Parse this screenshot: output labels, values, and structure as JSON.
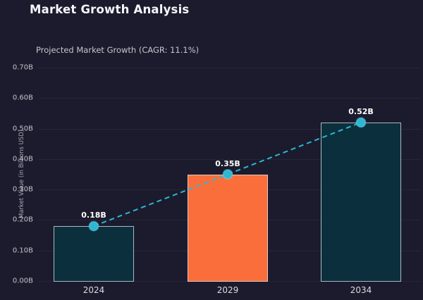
{
  "title": "Market Growth Analysis",
  "subtitle": "Projected Market Growth (CAGR: 11.1%)",
  "colors": {
    "background": "#1b1b2d",
    "bar_teal": "#0b2f3d",
    "bar_orange": "#fa6e3c",
    "bar_border": "rgba(222,232,236,0.75)",
    "trend_line": "#2db7d1",
    "marker_fill": "#2db7d1",
    "title_text": "#f5f5fa",
    "subtitle_text": "#c6c6d0",
    "tick_text": "#c2c2cc",
    "axis_title_text": "#a8a8b6",
    "grid": "rgba(255,255,255,0.05)"
  },
  "chart_data": {
    "type": "bar",
    "overlay": "line",
    "title": "Market Growth Analysis",
    "subtitle": "Projected Market Growth (CAGR: 11.1%)",
    "categories": [
      "2024",
      "2029",
      "2034"
    ],
    "values": [
      0.18,
      0.35,
      0.52
    ],
    "bar_labels": [
      "0.18B",
      "0.35B",
      "0.52B"
    ],
    "bar_colors": [
      "#0b2f3d",
      "#fa6e3c",
      "#0b2f3d"
    ],
    "xlabel": "",
    "ylabel": "Market Value (in Billions USD)",
    "ylim": [
      0,
      0.7
    ],
    "ytick_values": [
      0,
      0.1,
      0.2,
      0.3,
      0.4,
      0.5,
      0.6,
      0.7
    ],
    "ytick_labels": [
      "0.00B",
      "0.10B",
      "0.20B",
      "0.30B",
      "0.40B",
      "0.50B",
      "0.60B",
      "0.70B"
    ],
    "grid": "horizontal-faint",
    "legend": false,
    "trendline": {
      "style": "dashed",
      "points_follow_bar_tops": true,
      "cagr_percent": 11.1
    }
  }
}
